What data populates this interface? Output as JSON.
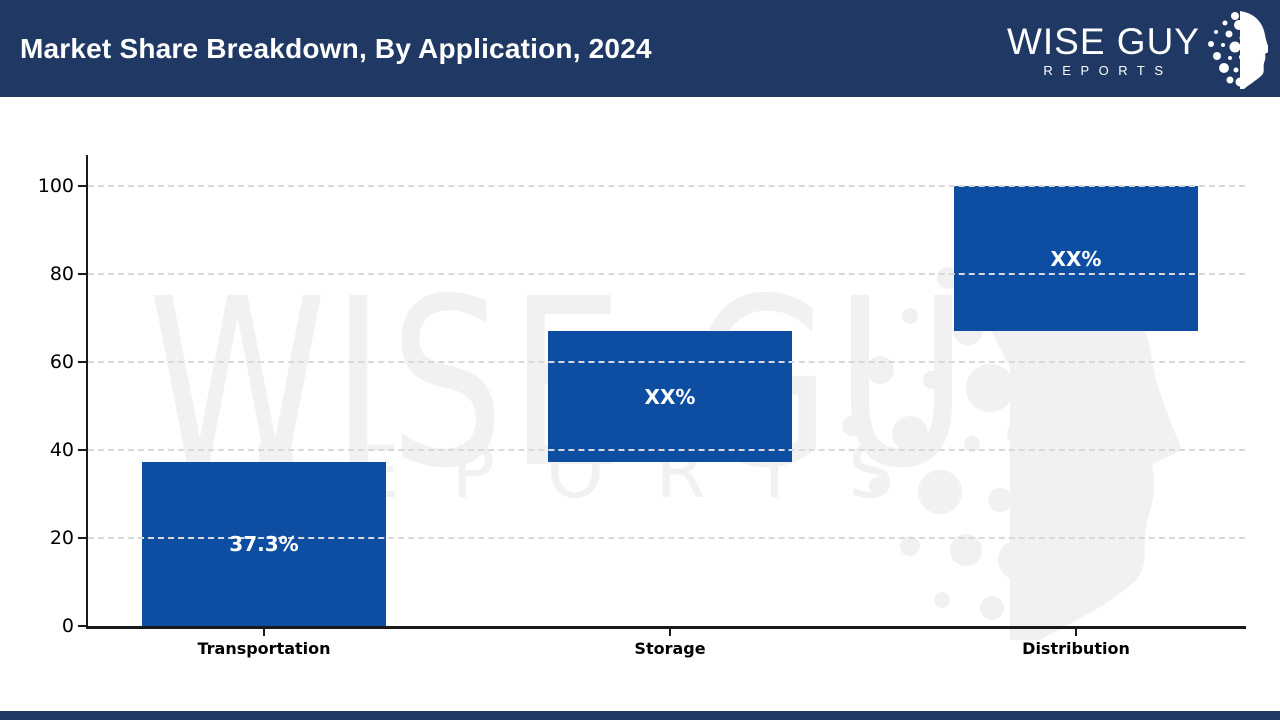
{
  "header": {
    "title": "Market Share Breakdown, By Application, 2024",
    "bg_color": "#1f3864",
    "logo": {
      "name": "WISE GUY",
      "subtitle": "REPORTS"
    }
  },
  "watermark": {
    "name": "WISE GUY",
    "subtitle": "REPORTS"
  },
  "chart_data": {
    "type": "bar",
    "subtype": "waterfall",
    "title": "Market Share Breakdown, By Application, 2024",
    "categories": [
      "Transportation",
      "Storage",
      "Distribution"
    ],
    "series": [
      {
        "name": "Market Share (%)",
        "segments": [
          {
            "category": "Transportation",
            "start": 0,
            "end": 37.3,
            "label": "37.3%"
          },
          {
            "category": "Storage",
            "start": 37.3,
            "end": 67,
            "label": "XX%"
          },
          {
            "category": "Distribution",
            "start": 67,
            "end": 100,
            "label": "XX%"
          }
        ]
      }
    ],
    "xlabel": "",
    "ylabel": "",
    "yticks": [
      0,
      20,
      40,
      60,
      80,
      100
    ],
    "ylim": [
      0,
      107
    ],
    "grid": "horizontal-dashed",
    "gridlines_over_bars": true,
    "bar_color": "#0d4da2",
    "bar_label_color": "#ffffff",
    "axis_color": "#1a1a1a",
    "gridline_color": "#d9d9d9"
  },
  "footer": {
    "bg_color": "#1f3864"
  }
}
